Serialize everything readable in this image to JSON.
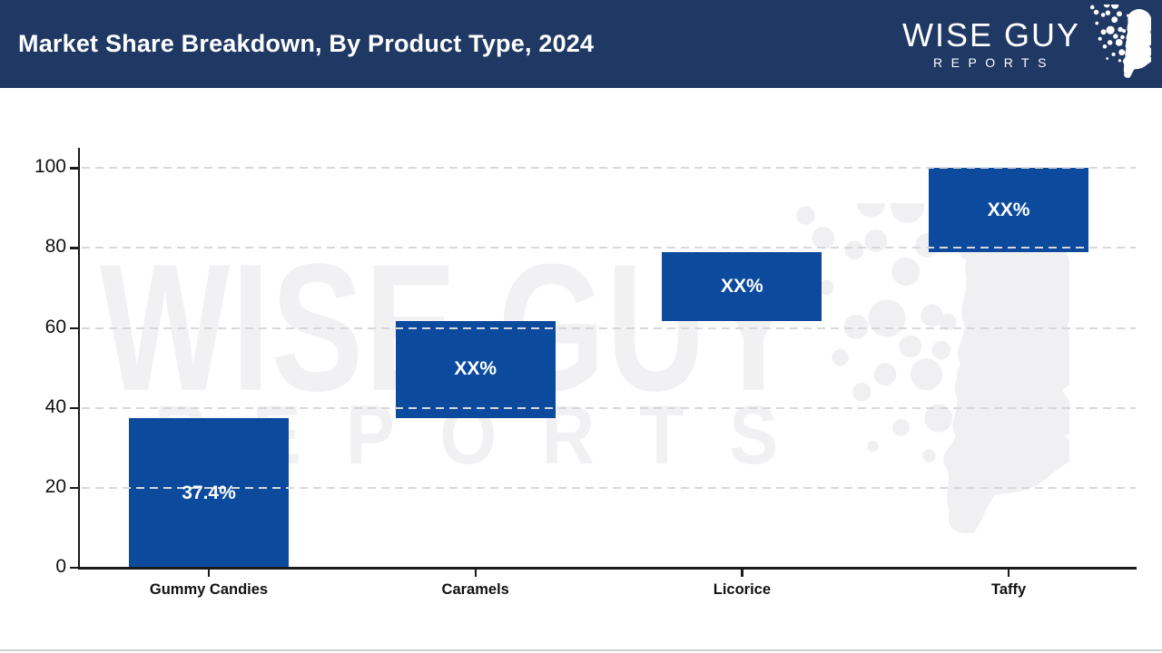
{
  "header": {
    "title": "Market Share Breakdown, By Product Type, 2024",
    "bg_color": "#1f3864",
    "logo": {
      "name": "WISE GUY",
      "tagline": "REPORTS"
    }
  },
  "watermark": {
    "line1": "WISE GUY",
    "line2": "REPORTS"
  },
  "chart_data": {
    "type": "bar",
    "subtype": "waterfall",
    "title": "Market Share Breakdown, By Product Type, 2024",
    "categories": [
      "Gummy Candies",
      "Caramels",
      "Licorice",
      "Taffy"
    ],
    "segment_ranges": [
      [
        0,
        37.4
      ],
      [
        37.4,
        61.8
      ],
      [
        61.8,
        79.0
      ],
      [
        79.0,
        100.0
      ]
    ],
    "values": [
      37.4,
      24.4,
      17.2,
      21.0
    ],
    "value_labels": [
      "37.4%",
      "XX%",
      "XX%",
      "XX%"
    ],
    "yticks": [
      0,
      20,
      40,
      60,
      80,
      100
    ],
    "ylim": [
      0,
      105
    ],
    "xlabel": "",
    "ylabel": "",
    "grid": "horizontal-dashed-above-bars",
    "legend": "none",
    "bar_color": "#0c4a9e",
    "bar_label_color": "#ffffff",
    "axis_color": "#1a1a1a",
    "grid_color": "#d8d8d8",
    "tick_label_color": "#111111"
  }
}
